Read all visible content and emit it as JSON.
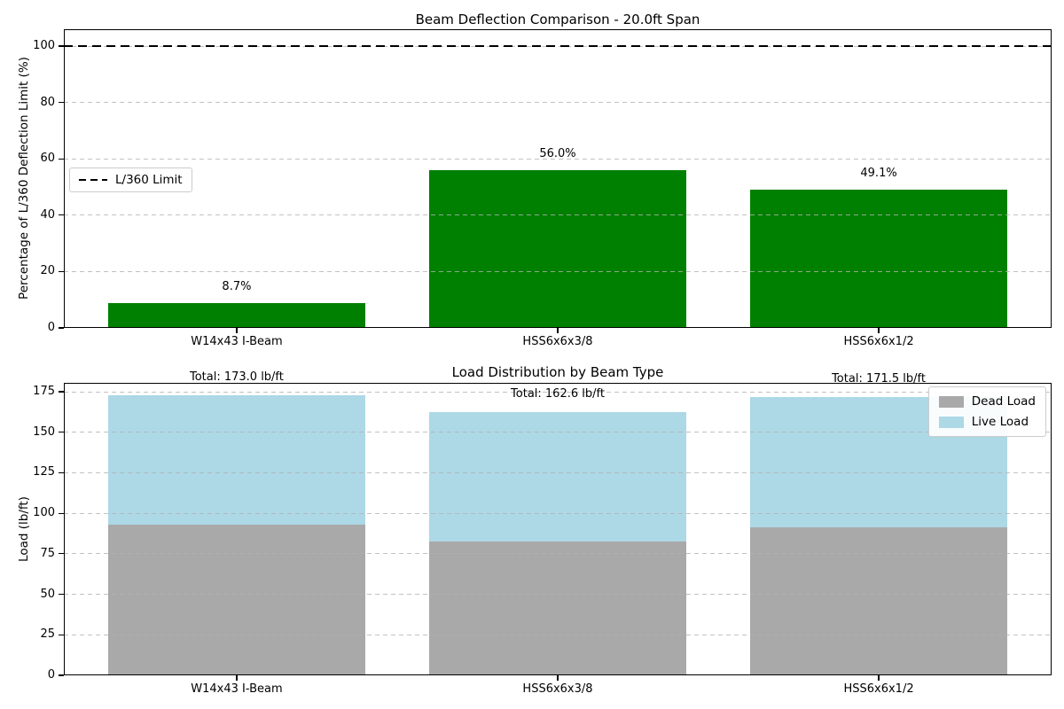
{
  "figure": {
    "background": "#ffffff"
  },
  "chart_data": [
    {
      "type": "bar",
      "title": "Beam Deflection Comparison - 20.0ft Span",
      "ylabel": "Percentage of L/360 Deflection Limit (%)",
      "xlabel": "",
      "categories": [
        "W14x43 I-Beam",
        "HSS6x6x3/8",
        "HSS6x6x1/2"
      ],
      "values": [
        8.7,
        56.0,
        49.1
      ],
      "bar_labels": [
        "8.7%",
        "56.0%",
        "49.1%"
      ],
      "bar_color": "#008000",
      "yticks": [
        0,
        20,
        40,
        60,
        80,
        100
      ],
      "ylim": [
        0,
        106
      ],
      "grid": true,
      "legend_position": "center-left",
      "ref_line": {
        "value": 100,
        "label": "L/360 Limit",
        "color": "#000000",
        "style": "dashed"
      }
    },
    {
      "type": "stacked-bar",
      "title": "Load Distribution by Beam Type",
      "ylabel": "Load (lb/ft)",
      "xlabel": "",
      "categories": [
        "W14x43 I-Beam",
        "HSS6x6x3/8",
        "HSS6x6x1/2"
      ],
      "series": [
        {
          "name": "Dead Load",
          "color": "#a9a9a9",
          "values": [
            93.0,
            82.6,
            91.5
          ]
        },
        {
          "name": "Live Load",
          "color": "#add8e6",
          "values": [
            80.0,
            80.0,
            80.0
          ]
        }
      ],
      "totals": [
        173.0,
        162.6,
        171.5
      ],
      "total_labels": [
        "Total: 173.0 lb/ft",
        "Total: 162.6 lb/ft",
        "Total: 171.5 lb/ft"
      ],
      "yticks": [
        0,
        25,
        50,
        75,
        100,
        125,
        150,
        175
      ],
      "ylim": [
        0,
        180.5
      ],
      "grid": true,
      "legend_position": "top-right"
    }
  ]
}
